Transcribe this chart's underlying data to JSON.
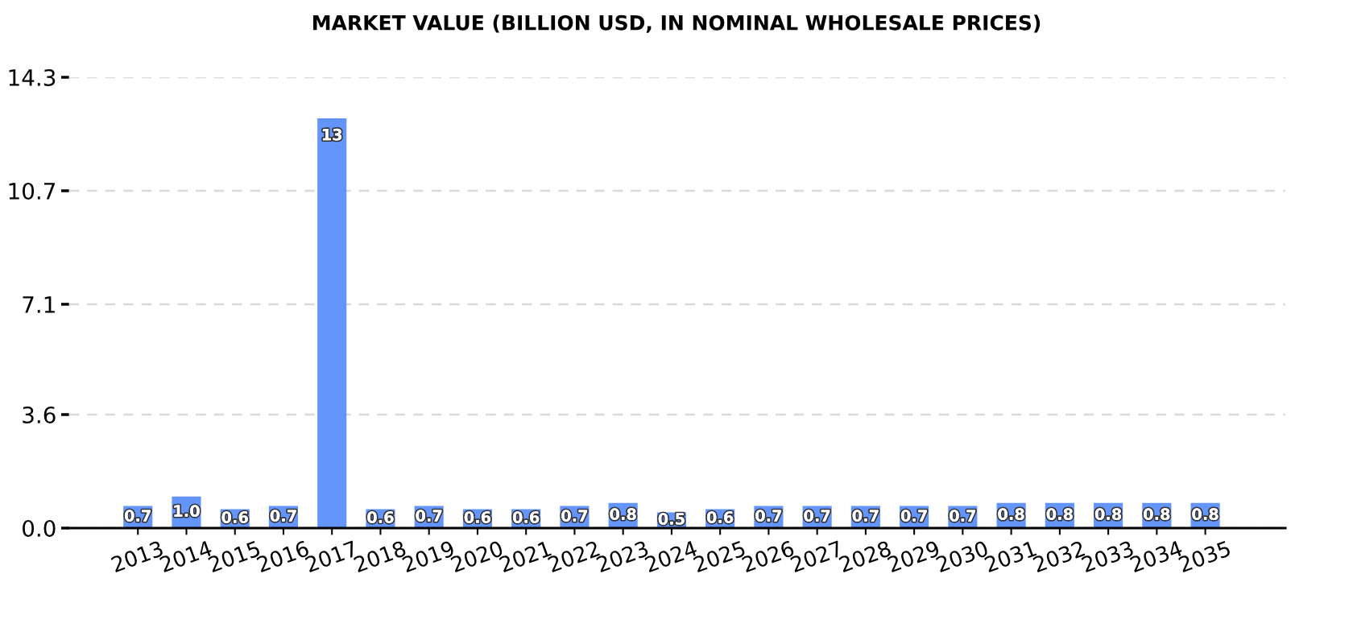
{
  "chart_data": {
    "type": "bar",
    "title": "MARKET VALUE (BILLION USD, IN NOMINAL WHOLESALE PRICES)",
    "categories": [
      "2013",
      "2014",
      "2015",
      "2016",
      "2017",
      "2018",
      "2019",
      "2020",
      "2021",
      "2022",
      "2023",
      "2024",
      "2025",
      "2026",
      "2027",
      "2028",
      "2029",
      "2030",
      "2031",
      "2032",
      "2033",
      "2034",
      "2035"
    ],
    "values": [
      0.7,
      1.0,
      0.6,
      0.7,
      13,
      0.6,
      0.7,
      0.6,
      0.6,
      0.7,
      0.8,
      0.5,
      0.6,
      0.7,
      0.7,
      0.7,
      0.7,
      0.7,
      0.8,
      0.8,
      0.8,
      0.8,
      0.8
    ],
    "value_labels": [
      "0.7",
      "1.0",
      "0.6",
      "0.7",
      "13",
      "0.6",
      "0.7",
      "0.6",
      "0.6",
      "0.7",
      "0.8",
      "0.5",
      "0.6",
      "0.7",
      "0.7",
      "0.7",
      "0.7",
      "0.7",
      "0.8",
      "0.8",
      "0.8",
      "0.8",
      "0.8"
    ],
    "color": "#6495fd",
    "ylim": [
      0,
      14.3
    ],
    "yticks": [
      {
        "value": 0,
        "label": "0.0"
      },
      3.6,
      7.1,
      10.7,
      14.3
    ],
    "grid": "y"
  }
}
